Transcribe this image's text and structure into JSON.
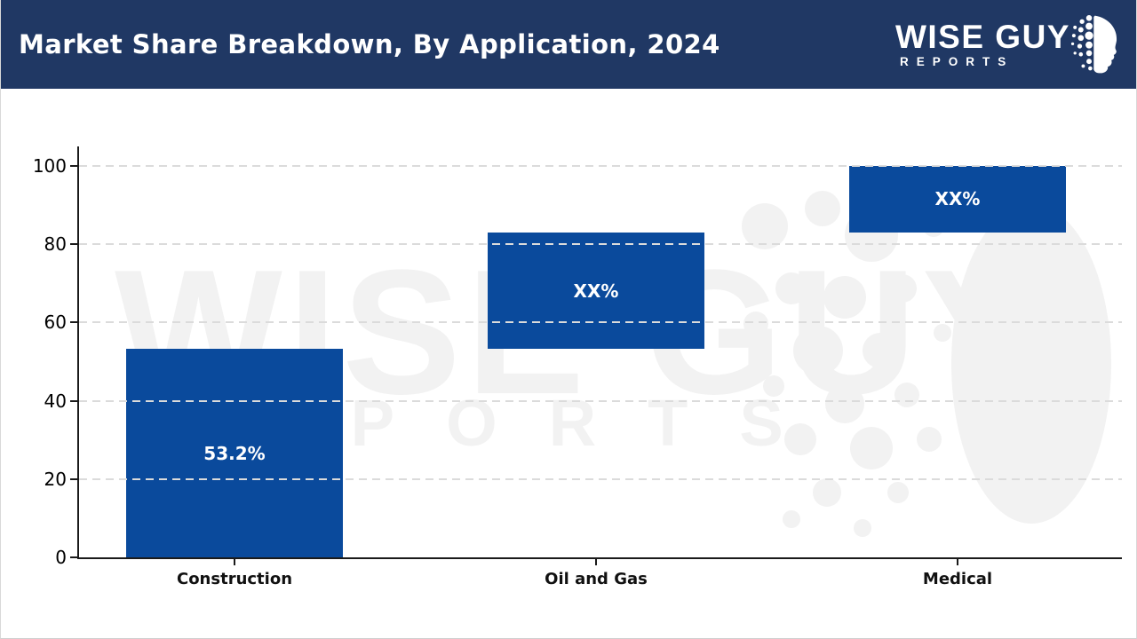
{
  "header": {
    "title": "Market Share Breakdown, By Application, 2024",
    "logo": {
      "brand_top": "WISE GUY",
      "brand_bottom": "REPORTS"
    }
  },
  "watermark": {
    "brand_top": "WISE GUY",
    "brand_bottom": "REPORTS"
  },
  "colors": {
    "header_bg": "#203864",
    "header_text": "#FFFFFF",
    "bar_fill": "#0A4A9C",
    "bar_label": "#FFFFFF",
    "gridline": "#DBDBDB",
    "axis": "#1A1A1A",
    "tick_label": "#000000",
    "watermark": "#F2F2F2",
    "page_bg": "#FFFFFF"
  },
  "chart_data": {
    "type": "bar",
    "subtype": "floating-waterfall",
    "title": "Market Share Breakdown, By Application, 2024",
    "categories": [
      "Construction",
      "Oil and Gas",
      "Medical"
    ],
    "series": [
      {
        "name": "Market share (%)",
        "segments": [
          {
            "category": "Construction",
            "start": 0,
            "end": 53.2,
            "label": "53.2%"
          },
          {
            "category": "Oil and Gas",
            "start": 53.2,
            "end": 83,
            "label": "XX%"
          },
          {
            "category": "Medical",
            "start": 83,
            "end": 100,
            "label": "XX%"
          }
        ]
      }
    ],
    "xlabel": "",
    "ylabel": "",
    "ylim": [
      0,
      100
    ],
    "yticks": [
      0,
      20,
      40,
      60,
      80,
      100
    ],
    "grid": "horizontal-dashed",
    "legend": "none"
  }
}
